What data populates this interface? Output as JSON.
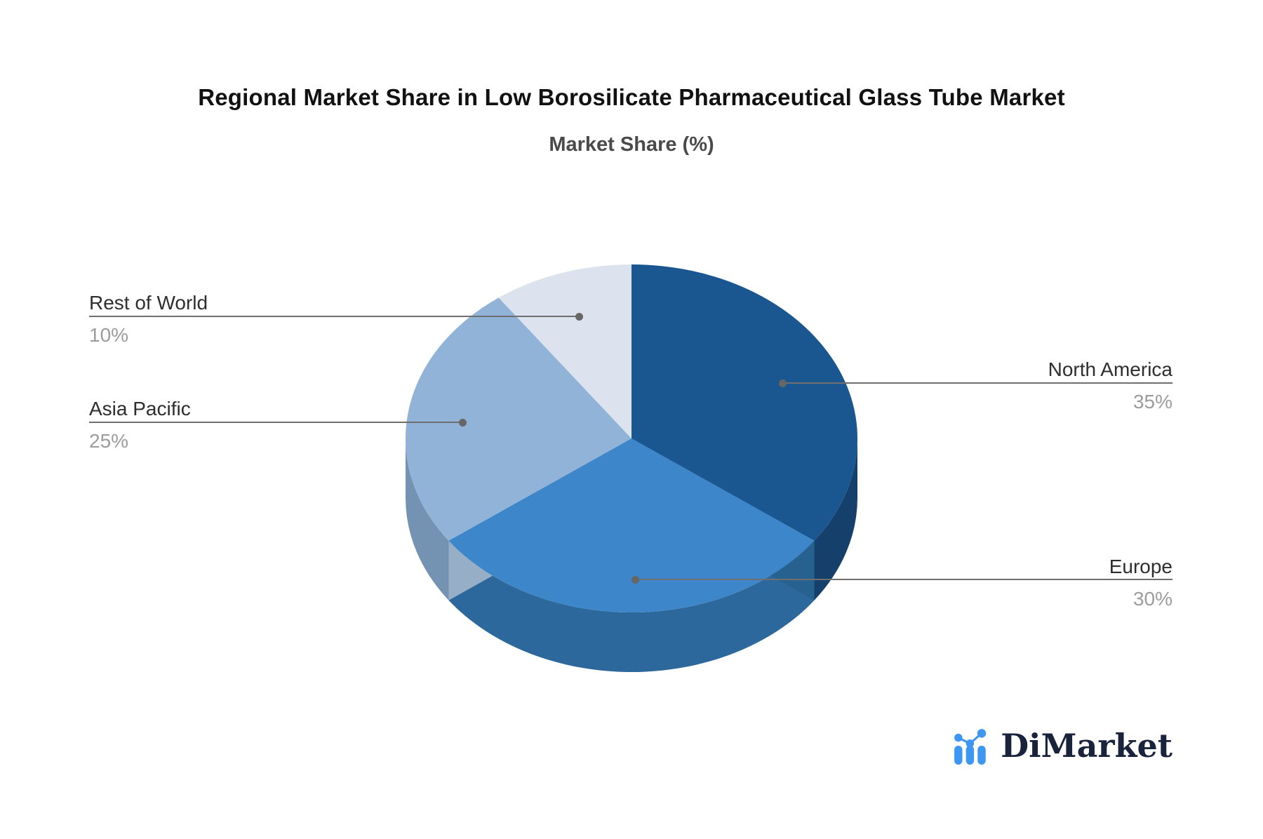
{
  "header": {
    "title": "Regional Market Share in Low Borosilicate Pharmaceutical Glass Tube Market",
    "subtitle": "Market Share (%)"
  },
  "chart_data": {
    "type": "pie",
    "style": "3d",
    "title": "Regional Market Share in Low Borosilicate Pharmaceutical Glass Tube Market",
    "subtitle": "Market Share (%)",
    "unit": "%",
    "start_angle_deg": 0,
    "direction": "clockwise",
    "legend_position": "callout-labels",
    "slices": [
      {
        "label": "North America",
        "value": 35,
        "value_label": "35%",
        "color": "#1A568F",
        "side_color": "#15406B",
        "callout": "right"
      },
      {
        "label": "Europe",
        "value": 30,
        "value_label": "30%",
        "color": "#3C86C9",
        "side_color": "#2D689C",
        "callout": "right"
      },
      {
        "label": "Asia Pacific",
        "value": 25,
        "value_label": "25%",
        "color": "#91B3D7",
        "side_color": "#7493B3",
        "callout": "left"
      },
      {
        "label": "Rest of World",
        "value": 10,
        "value_label": "10%",
        "color": "#DCE3EE",
        "side_color": "#C3CDDD",
        "callout": "left"
      }
    ],
    "boundary_face_colors": {
      "na_europe": "#27618F",
      "europe_asia": "#97AEC7"
    },
    "leader_line_color": "#6F6F6F",
    "leader_dot_color": "#666666"
  },
  "logo": {
    "text": "DiMarket",
    "icon": "bar-line-chart-icon",
    "icon_color": "#3E96F3",
    "text_color": "#19233C"
  }
}
